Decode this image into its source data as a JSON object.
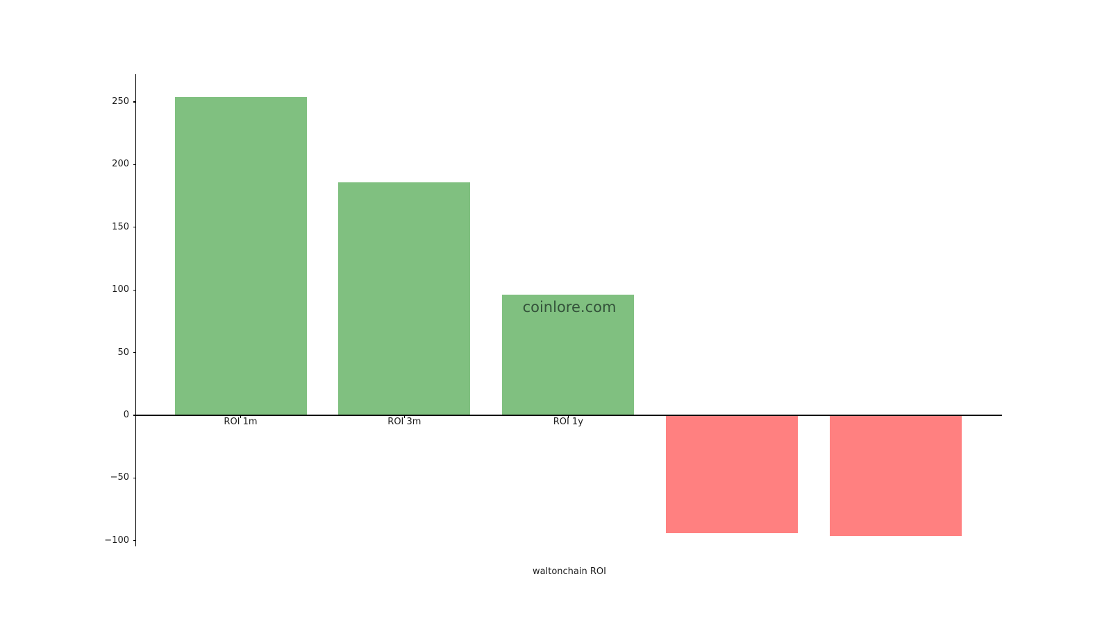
{
  "chart_data": {
    "type": "bar",
    "title": "",
    "xlabel": "waltonchain ROI",
    "ylabel": "",
    "categories": [
      "ROI 1m",
      "ROI 3m",
      "ROI 1y",
      "",
      ""
    ],
    "values": [
      254,
      186,
      96,
      -94,
      -96
    ],
    "bar_colors": [
      "#80c080",
      "#80c080",
      "#80c080",
      "#ff8080",
      "#ff8080"
    ],
    "yticks": [
      250,
      200,
      150,
      100,
      50,
      0,
      -50,
      -100
    ],
    "ytick_labels": [
      "250",
      "200",
      "150",
      "100",
      "50",
      "0",
      "−50",
      "−100"
    ],
    "ylim": [
      -105,
      272
    ],
    "grid": false,
    "legend_position": "none",
    "watermark": "coinlore.com"
  },
  "colors": {
    "bar_positive": "#80c080",
    "bar_negative": "#ff8080",
    "axis": "#000000",
    "tick_text": "#1a1a1a",
    "watermark_text": "#33523a"
  }
}
